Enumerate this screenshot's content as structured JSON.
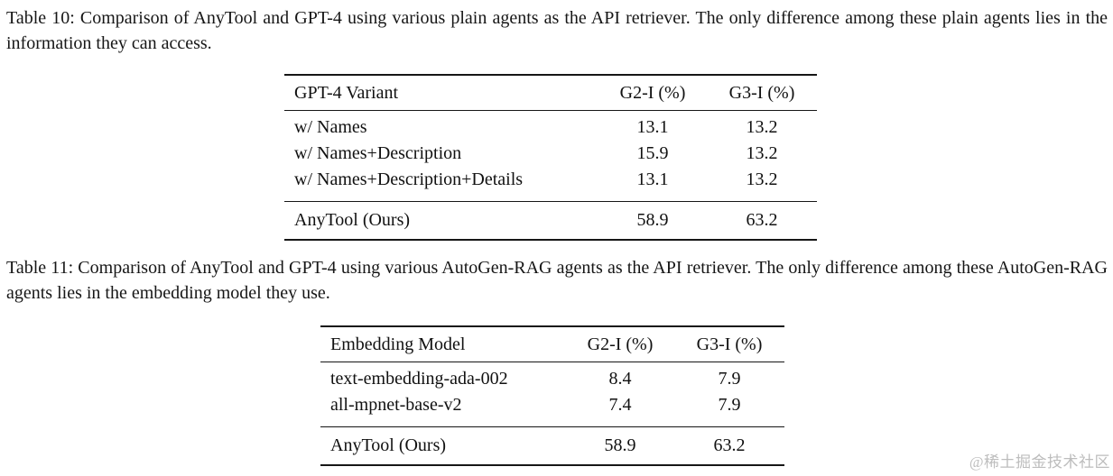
{
  "table10": {
    "caption": "Table 10: Comparison of AnyTool and GPT-4 using various plain agents as the API retriever. The only difference among these plain agents lies in the information they can access.",
    "columns": [
      "GPT-4 Variant",
      "G2-I (%)",
      "G3-I (%)"
    ],
    "rows": [
      {
        "label": "w/ Names",
        "g2i": "13.1",
        "g3i": "13.2"
      },
      {
        "label": "w/ Names+Description",
        "g2i": "15.9",
        "g3i": "13.2"
      },
      {
        "label": "w/ Names+Description+Details",
        "g2i": "13.1",
        "g3i": "13.2"
      }
    ],
    "highlight_row": {
      "label": "AnyTool (Ours)",
      "g2i": "58.9",
      "g3i": "63.2"
    }
  },
  "table11": {
    "caption": "Table 11: Comparison of AnyTool and GPT-4 using various AutoGen-RAG agents as the API retriever. The only difference among these AutoGen-RAG agents lies in the embedding model they use.",
    "columns": [
      "Embedding Model",
      "G2-I (%)",
      "G3-I (%)"
    ],
    "rows": [
      {
        "label": "text-embedding-ada-002",
        "g2i": "8.4",
        "g3i": "7.9"
      },
      {
        "label": "all-mpnet-base-v2",
        "g2i": "7.4",
        "g3i": "7.9"
      }
    ],
    "highlight_row": {
      "label": "AnyTool (Ours)",
      "g2i": "58.9",
      "g3i": "63.2"
    }
  },
  "watermark": {
    "text": "@稀土掘金技术社区"
  },
  "colors": {
    "text": "#161616",
    "background": "#ffffff",
    "watermark": "#bdbdbd"
  }
}
